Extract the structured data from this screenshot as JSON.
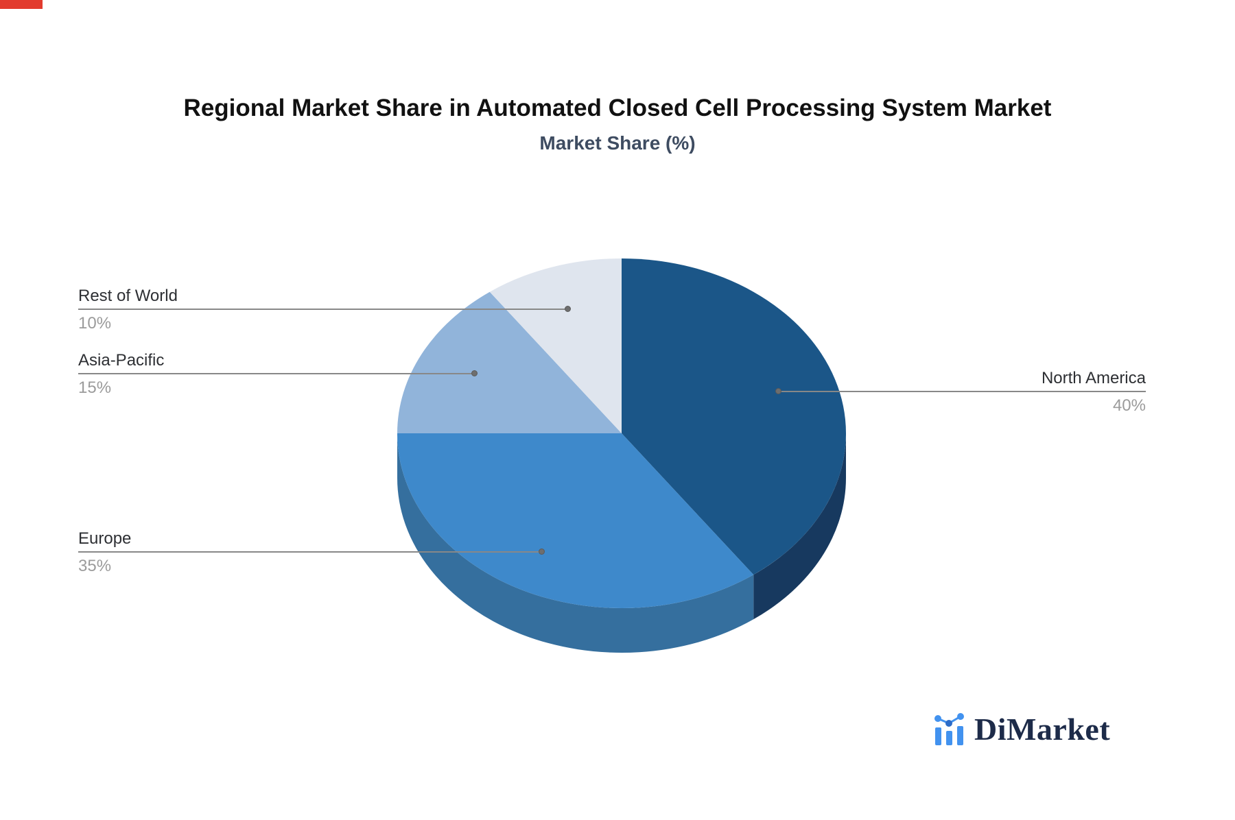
{
  "decorations": {
    "top_left_marker_color": "#e23b2e"
  },
  "header": {
    "title": "Regional Market Share in Automated Closed Cell Processing System Market",
    "subtitle": "Market Share (%)",
    "title_color": "#111111",
    "subtitle_color": "#3e4c61"
  },
  "chart_data": {
    "type": "pie",
    "style": "3d",
    "title": "Regional Market Share in Automated Closed Cell Processing System Market",
    "subtitle": "Market Share (%)",
    "unit": "%",
    "order_clockwise_from_top": true,
    "slices": [
      {
        "label": "North America",
        "value": 40,
        "pct_label": "40%",
        "color": "#1b5688",
        "side_color": "#17395f"
      },
      {
        "label": "Europe",
        "value": 35,
        "pct_label": "35%",
        "color": "#3e89cb",
        "side_color": "#356f9e"
      },
      {
        "label": "Asia-Pacific",
        "value": 15,
        "pct_label": "15%",
        "color": "#91b4da",
        "side_color": "#7195bd"
      },
      {
        "label": "Rest of World",
        "value": 10,
        "pct_label": "10%",
        "color": "#dfe5ee",
        "side_color": "#b8c3d3"
      }
    ],
    "label_text_color": "#2d2f33",
    "pct_text_color": "#9b9b9b",
    "connector_color": "#888888",
    "legend_position": "callouts"
  },
  "brand": {
    "name": "DiMarket",
    "icon": "bar-line-chart-icon",
    "text_color": "#1d2b49",
    "icon_color": "#4292ef",
    "icon_accent_color": "#2d6cc8"
  }
}
